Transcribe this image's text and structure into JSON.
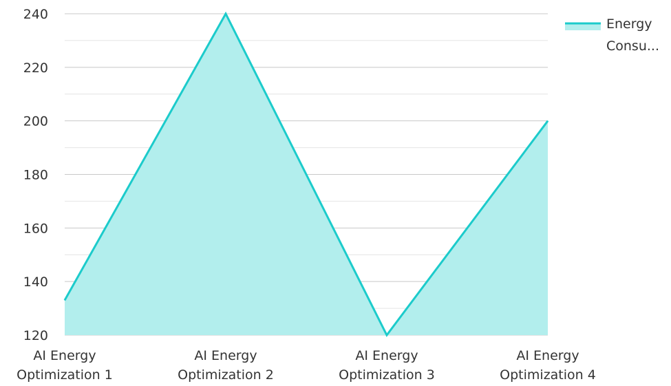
{
  "chart_data": {
    "type": "area",
    "title": "",
    "xlabel": "",
    "ylabel": "",
    "categories": [
      [
        "AI Energy",
        "Optimization 1"
      ],
      [
        "AI Energy",
        "Optimization 2"
      ],
      [
        "AI Energy",
        "Optimization 3"
      ],
      [
        "AI Energy",
        "Optimization 4"
      ]
    ],
    "series": [
      {
        "name": "Energy Consu...",
        "legend_lines": [
          "Energy",
          "Consu..."
        ],
        "values": [
          133,
          240,
          120,
          200
        ],
        "color": "#1ccbcb",
        "fill": "#b2eeed"
      }
    ],
    "ylim": [
      120,
      240
    ],
    "yticks": [
      120,
      140,
      160,
      180,
      200,
      220,
      240
    ],
    "grid": true,
    "legend": "top-right"
  }
}
